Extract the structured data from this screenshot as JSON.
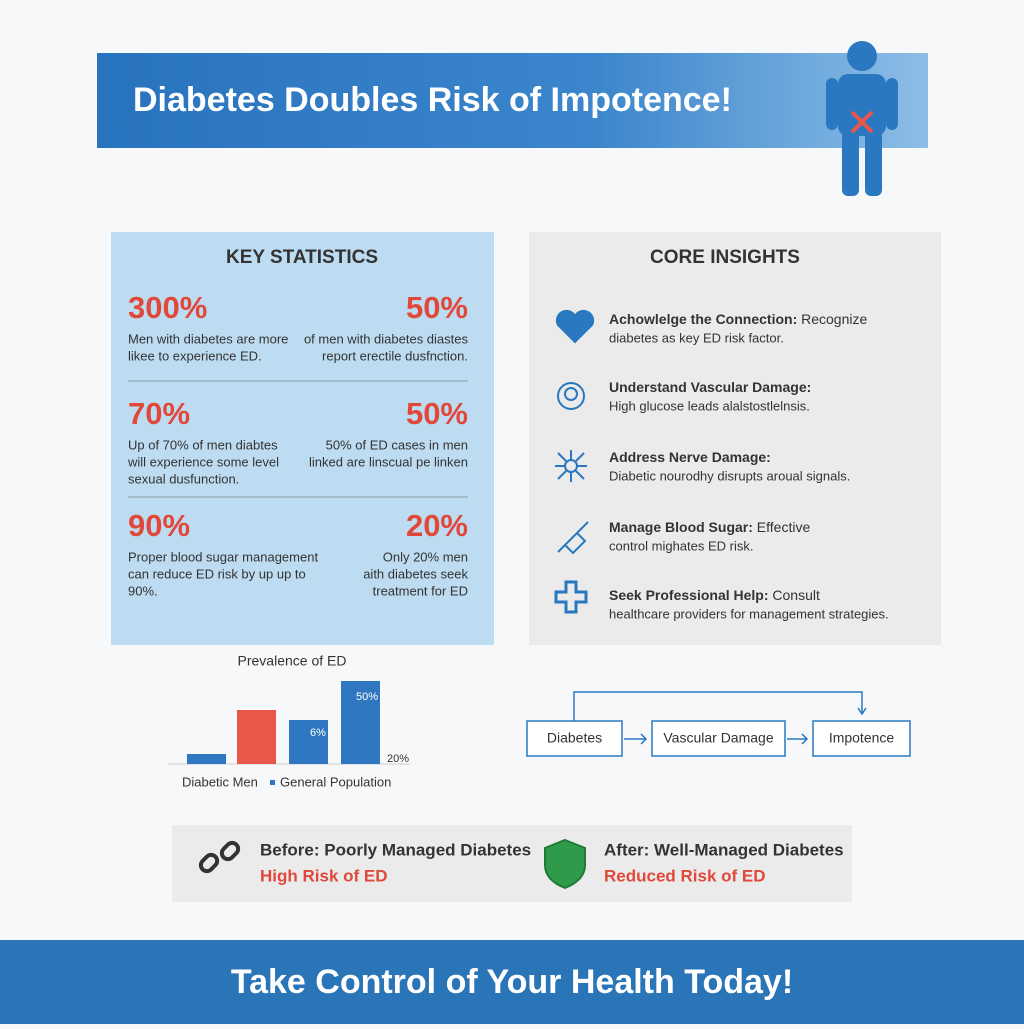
{
  "header": {
    "title": "Diabetes Doubles Risk of Impotence!"
  },
  "statistics": {
    "title": "KEY STATISTICS",
    "items": [
      {
        "value": "300%",
        "lines": [
          "Men with diabetes are more",
          "likee to experience ED."
        ]
      },
      {
        "value": "50%",
        "lines": [
          "of men with diabetes diastes",
          "report erectile dusfnction."
        ]
      },
      {
        "value": "70%",
        "lines": [
          "Up of 70% of men diabtes",
          "will experience some level",
          "sexual dusfunction."
        ]
      },
      {
        "value": "50%",
        "lines": [
          "50% of ED cases in men",
          "linked are linscual pe linken"
        ]
      },
      {
        "value": "90%",
        "lines": [
          "Proper blood sugar management",
          "can reduce ED risk by up up to",
          "90%."
        ]
      },
      {
        "value": "20%",
        "lines": [
          "Only 20% men",
          "aith diabetes seek",
          "treatment for ED"
        ]
      }
    ]
  },
  "insights": {
    "title": "CORE INSIGHTS",
    "items": [
      {
        "heading": "Achowlelge the Connection:",
        "text": "Recognize",
        "detail": "diabetes as key ED risk factor."
      },
      {
        "heading": "Understand Vascular Damage:",
        "detail": "High glucose leads alalstostlelnsis."
      },
      {
        "heading": "Address Nerve Damage:",
        "detail": "Diabetic nourodhy disrupts aroual signals."
      },
      {
        "heading": "Manage Blood Sugar:",
        "text": "Effective",
        "detail": "control mighates ED risk."
      },
      {
        "heading": "Seek Professional Help:",
        "text": "Consult",
        "detail": "healthcare providers for management strategies."
      }
    ]
  },
  "chart": {
    "type": "bar",
    "title": "Prevalence of ED",
    "values": [
      10,
      54,
      44,
      83
    ],
    "colors": [
      "#2f77c0",
      "#e8574a",
      "#2f77c0",
      "#2f77c0"
    ],
    "ylim": [
      0,
      100
    ],
    "annotations": [
      "6%",
      "50%",
      "20%"
    ],
    "legend": [
      "Diabetic Men",
      "General Population"
    ]
  },
  "flow": {
    "nodes": [
      "Diabetes",
      "Vascular Damage",
      "Impotence"
    ]
  },
  "comparison": {
    "before": {
      "title": "Before: Poorly Managed Diabetes",
      "subtitle": "High Risk of ED"
    },
    "after": {
      "title": "After: Well-Managed Diabetes",
      "subtitle": "Reduced Risk of ED"
    }
  },
  "footer": {
    "text": "Take Control of Your Health Today!"
  }
}
